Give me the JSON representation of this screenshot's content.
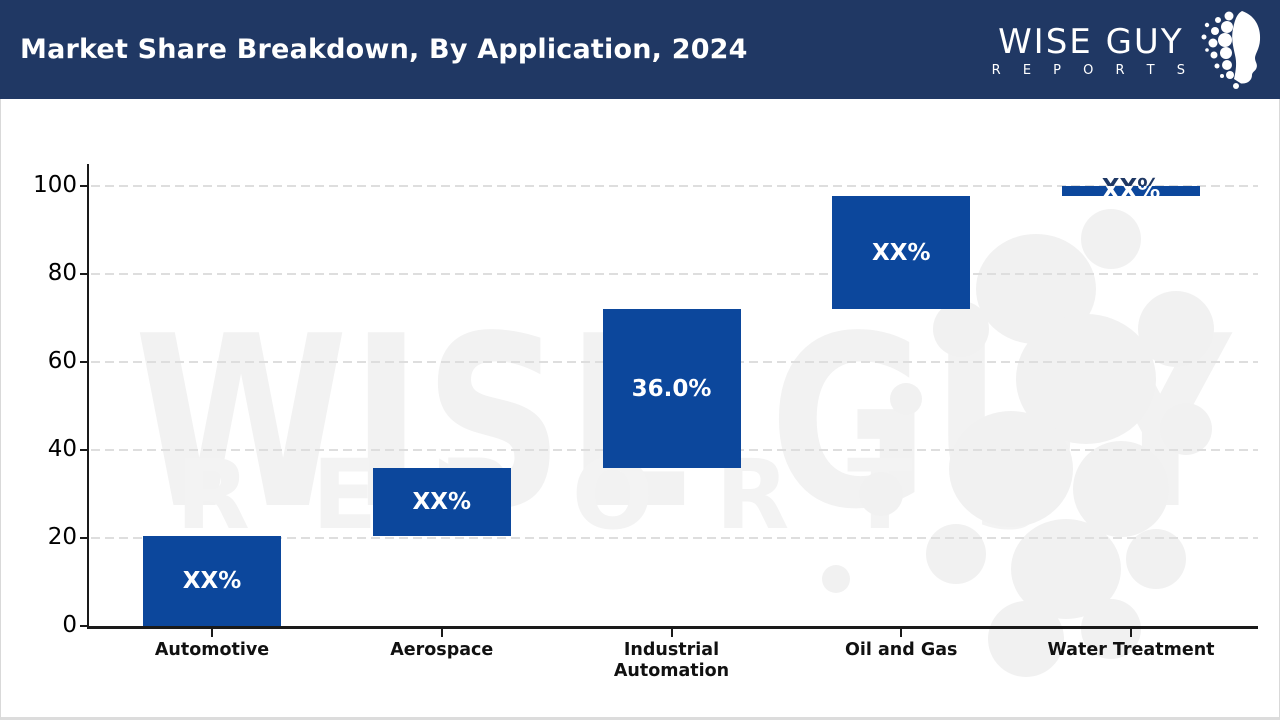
{
  "header": {
    "title": "Market Share Breakdown, By Application, 2024",
    "logo": {
      "name": "WISE GUY",
      "subtitle": "R E P O R T S"
    }
  },
  "watermark": {
    "line1": "WISE GUY",
    "line2": "REPORTS"
  },
  "colors": {
    "header_bg": "#203864",
    "bar_blue": "#0c479c",
    "grid_gray": "#dedede",
    "axis_black": "#1a1a1a",
    "overflow_label_dark": "#1f3864",
    "watermark_gray": "#f2f2f2"
  },
  "chart_data": {
    "type": "bar",
    "subtype": "waterfall",
    "title": "Market Share Breakdown, By Application, 2024",
    "categories": [
      "Automotive",
      "Aerospace",
      "Industrial Automation",
      "Oil and Gas",
      "Water Treatment"
    ],
    "segments": [
      {
        "category": "Automotive",
        "start": 0,
        "end": 20.5,
        "label": "XX%"
      },
      {
        "category": "Aerospace",
        "start": 20.5,
        "end": 35.8,
        "label": "XX%"
      },
      {
        "category": "Industrial Automation",
        "start": 35.9,
        "end": 72.0,
        "label": "36.0%"
      },
      {
        "category": "Oil and Gas",
        "start": 72.0,
        "end": 97.7,
        "label": "XX%"
      },
      {
        "category": "Water Treatment",
        "start": 97.7,
        "end": 100.0,
        "label": "XX%",
        "label_overflow": true
      }
    ],
    "yticks": [
      0,
      20,
      40,
      60,
      80,
      100
    ],
    "ylim": [
      0,
      105
    ],
    "xlabel": "",
    "ylabel": "",
    "grid": "horizontal-dashed",
    "legend": "none",
    "bar_color": "#0c479c"
  }
}
